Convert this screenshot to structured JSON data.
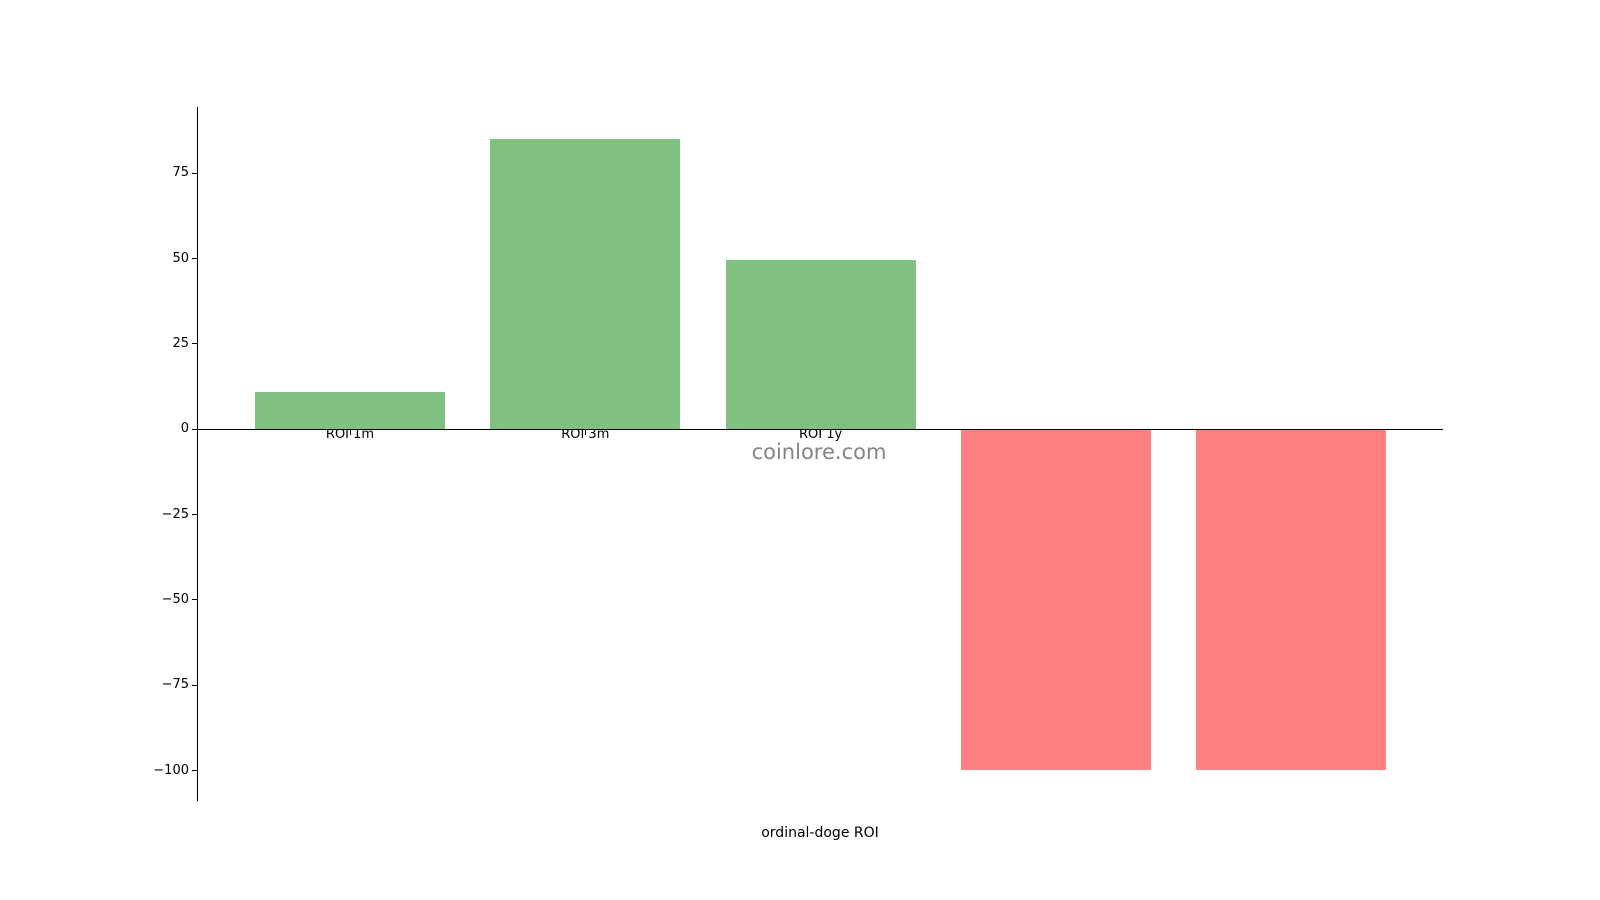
{
  "page": {
    "background": "#ffffff"
  },
  "watermark": {
    "text": "coinlore.com",
    "color": "#848484"
  },
  "chart_data": {
    "type": "bar",
    "title": "",
    "xlabel": "ordinal-doge ROI",
    "ylabel": "",
    "categories": [
      "ROI 1m",
      "ROI 3m",
      "ROI 1y",
      "",
      ""
    ],
    "values": [
      11,
      85,
      49.5,
      -99.5,
      -99.5
    ],
    "bar_colors": [
      "#80c080",
      "#80c080",
      "#80c080",
      "#ff8080",
      "#ff8080"
    ],
    "positive_color": "#80c080",
    "negative_color": "#ff8080",
    "y_ticks": [
      75,
      50,
      25,
      0,
      -25,
      -50,
      -75,
      -100
    ],
    "y_tick_labels": [
      "75",
      "50",
      "25",
      "0",
      "−25",
      "−50",
      "−75",
      "−100"
    ],
    "ylim": [
      -108.8,
      94.3
    ],
    "grid": false,
    "legend": null,
    "layout_hints": {
      "axis_color": "#000000",
      "x_tick_labels_of_negative_bars": "hidden behind bars",
      "zero_line_drawn_over_bars": true
    }
  }
}
